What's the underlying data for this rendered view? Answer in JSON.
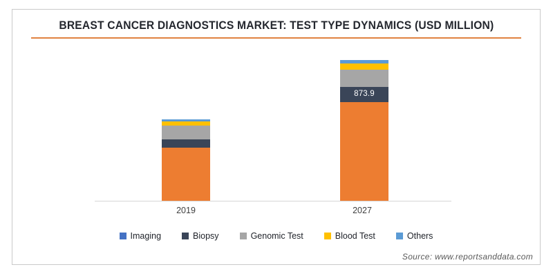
{
  "header": {
    "title": "BREAST CANCER DIAGNOSTICS MARKET: TEST TYPE DYNAMICS (USD MILLION)"
  },
  "footer": {
    "source_label": "Source: www.reportsanddata.com"
  },
  "colors": {
    "title_text": "#24272e",
    "title_rule_orange": "#e0813f",
    "frame_border": "#c9c9c9",
    "axis_line": "#d6d6d6",
    "imaging_bar_orange": "#ED7D31",
    "imaging_legend_blue": "#4472C4",
    "biopsy_dark_navy": "#3A4558",
    "genomic_gray": "#A6A6A6",
    "blood_yellow": "#FFC000",
    "others_light_blue": "#5B9BD5",
    "data_label_text": "#ffffff"
  },
  "chart_data": {
    "type": "bar",
    "stacked": true,
    "title": "BREAST CANCER DIAGNOSTICS MARKET: TEST TYPE DYNAMICS (USD MILLION)",
    "unit": "USD Million",
    "categories": [
      "2019",
      "2027"
    ],
    "series": [
      {
        "name": "Imaging",
        "values": [
          3055,
          5675
        ],
        "legend_color": "#4472C4",
        "bar_color": "#ED7D31"
      },
      {
        "name": "Biopsy",
        "values": [
          475,
          873.9
        ],
        "color": "#3A4558"
      },
      {
        "name": "Genomic Test",
        "values": [
          795,
          990
        ],
        "color": "#A6A6A6"
      },
      {
        "name": "Blood Test",
        "values": [
          240,
          355
        ],
        "color": "#FFC000"
      },
      {
        "name": "Others",
        "values": [
          120,
          200
        ],
        "color": "#5B9BD5"
      }
    ],
    "data_labels": [
      {
        "category": "2027",
        "series": "Biopsy",
        "text": "873.9"
      }
    ],
    "legend_position": "bottom",
    "values_estimated": true,
    "labeled_value_only": "873.9"
  }
}
